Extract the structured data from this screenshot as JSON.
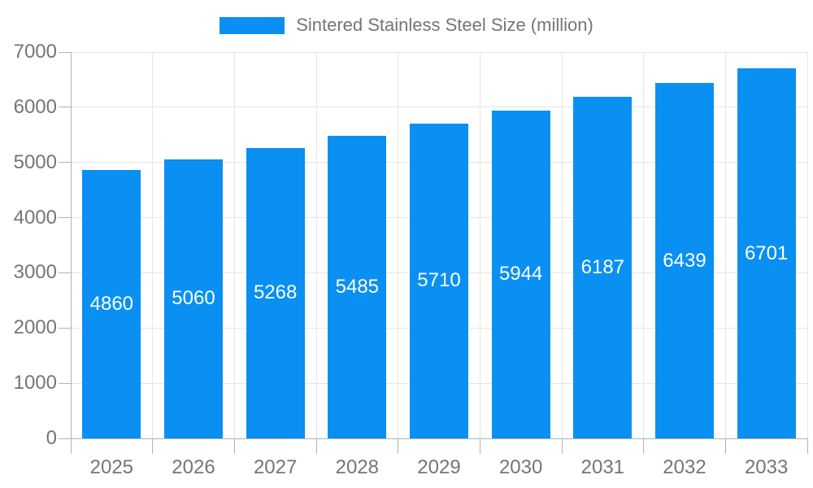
{
  "chart_data": {
    "type": "bar",
    "legend_label": "Sintered Stainless Steel Size (million)",
    "categories": [
      "2025",
      "2026",
      "2027",
      "2028",
      "2029",
      "2030",
      "2031",
      "2032",
      "2033"
    ],
    "values": [
      4860,
      5060,
      5268,
      5485,
      5710,
      5944,
      6187,
      6439,
      6701
    ],
    "yticks": [
      0,
      1000,
      2000,
      3000,
      4000,
      5000,
      6000,
      7000
    ],
    "ylim": [
      0,
      7000
    ],
    "xlabel": "",
    "ylabel": "",
    "grid": true,
    "legend_position": "top-center",
    "bar_color": "#0a90f2",
    "value_label_color": "#ffffff"
  },
  "colors": {
    "bar": "#0a90f2",
    "grid": "#e6e6e6",
    "axis": "#b3b3b3",
    "text": "#757575",
    "background": "#ffffff"
  }
}
